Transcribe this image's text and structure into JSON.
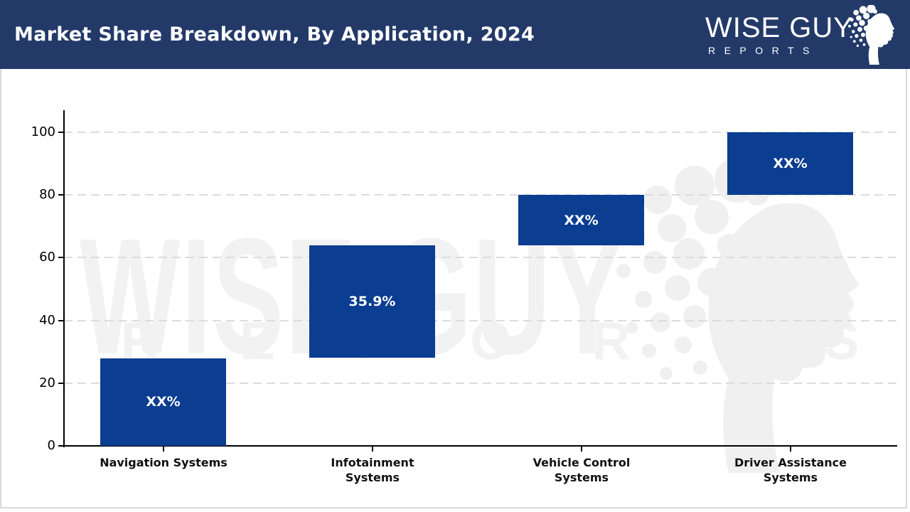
{
  "header": {
    "title": "Market Share Breakdown, By Application, 2024",
    "bg_color": "#233a69",
    "logo": {
      "line1": "WISE GUY",
      "line2": "REPORTS"
    }
  },
  "watermark": {
    "line1": "WISE GUY",
    "line2": "R E P O R T S"
  },
  "chart_data": {
    "type": "bar",
    "subtype": "floating-waterfall",
    "title": "Market Share Breakdown, By Application, 2024",
    "categories": [
      "Navigation Systems",
      "Infotainment Systems",
      "Vehicle Control Systems",
      "Driver Assistance Systems"
    ],
    "category_label_lines": [
      [
        "Navigation Systems"
      ],
      [
        "Infotainment",
        "Systems"
      ],
      [
        "Vehicle Control",
        "Systems"
      ],
      [
        "Driver Assistance",
        "Systems"
      ]
    ],
    "series": [
      {
        "name": "Market Share (%)",
        "segments": [
          {
            "category": "Navigation Systems",
            "start": 0,
            "end": 28,
            "value": 28,
            "value_label": "XX%"
          },
          {
            "category": "Infotainment Systems",
            "start": 28,
            "end": 63.9,
            "value": 35.9,
            "value_label": "35.9%"
          },
          {
            "category": "Vehicle Control Systems",
            "start": 63.9,
            "end": 80,
            "value": 16.1,
            "value_label": "XX%"
          },
          {
            "category": "Driver Assistance Systems",
            "start": 80,
            "end": 100,
            "value": 20,
            "value_label": "XX%"
          }
        ]
      }
    ],
    "bar_color": "#0b3d91",
    "bar_label_color": "#ffffff",
    "yticks": [
      0,
      20,
      40,
      60,
      80,
      100
    ],
    "ylim": [
      0,
      107
    ],
    "xlabel": "",
    "ylabel": "",
    "grid": "horizontal-dashed",
    "gridline_color": "#dcdcdc",
    "axis_color": "#000000",
    "legend": "none"
  }
}
